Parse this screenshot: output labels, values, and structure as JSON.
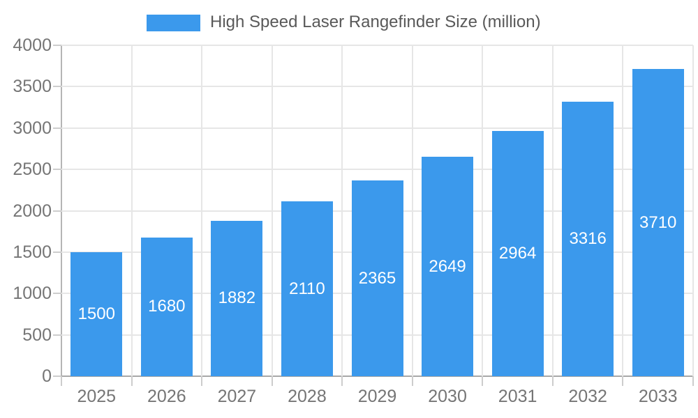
{
  "legend": {
    "swatch_color": "#3B99EC",
    "label": "High Speed Laser Rangefinder Size (million)"
  },
  "chart_data": {
    "type": "bar",
    "title": "High Speed Laser Rangefinder Size (million)",
    "categories": [
      "2025",
      "2026",
      "2027",
      "2028",
      "2029",
      "2030",
      "2031",
      "2032",
      "2033"
    ],
    "values": [
      1500,
      1680,
      1882,
      2110,
      2365,
      2649,
      2964,
      3316,
      3710
    ],
    "xlabel": "",
    "ylabel": "",
    "ylim": [
      0,
      4000
    ],
    "ytick_step": 500,
    "yticks": [
      0,
      500,
      1000,
      1500,
      2000,
      2500,
      3000,
      3500,
      4000
    ],
    "grid": true,
    "legend_position": "top",
    "bar_color": "#3B99EC",
    "value_label_color": "#FFFFFF",
    "axis_label_color": "#757575",
    "gridline_color": "#E6E6E6",
    "axis_line_color": "#B5B5B5",
    "tick_color": "#CDCDCD"
  }
}
